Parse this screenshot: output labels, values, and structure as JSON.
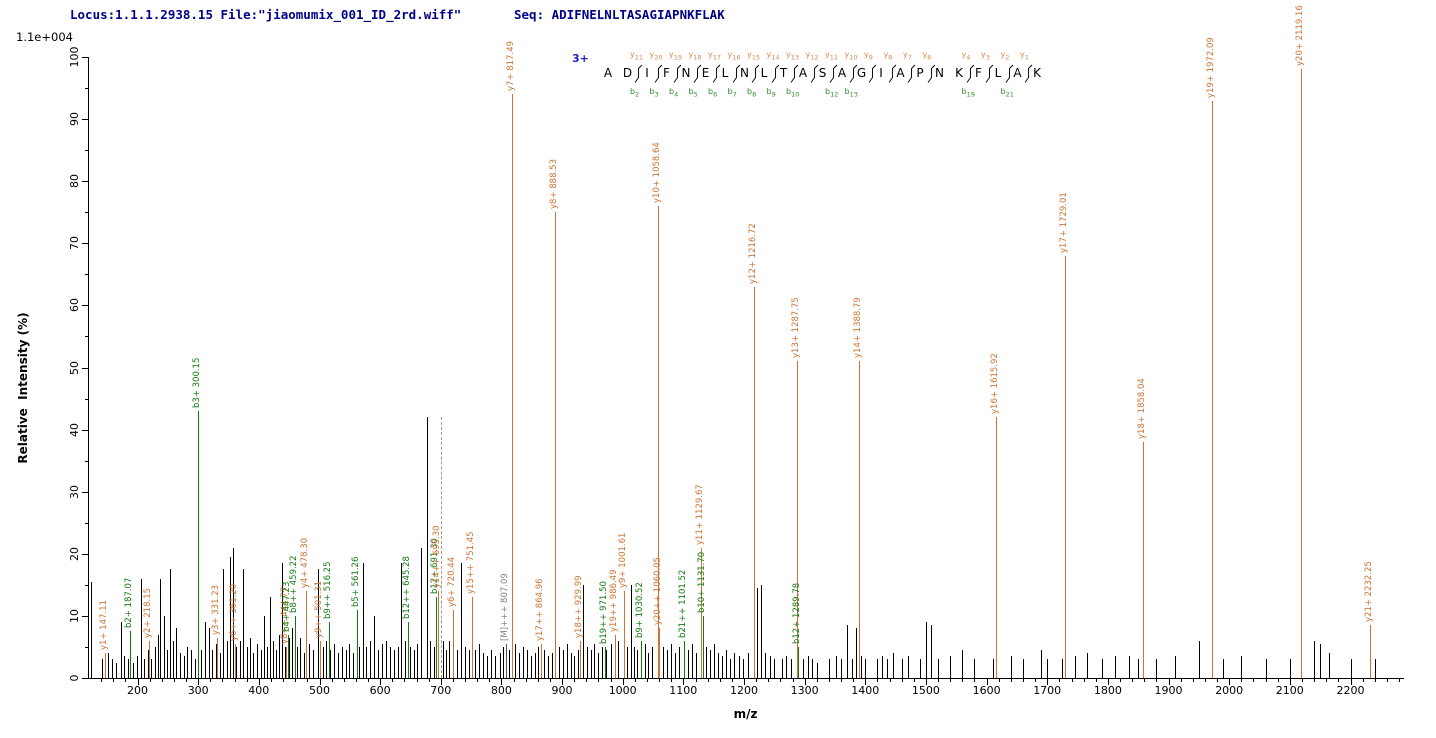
{
  "header": {
    "locus_file": "Locus:1.1.1.2938.15 File:\"jiaomumix_001_ID_2rd.wiff\"",
    "seq_line": "Seq: ADIFNELNLTASAGIAPNKFLAK"
  },
  "colors": {
    "y_ion": "#cf7233",
    "b_ion": "#107a10",
    "precursor_label": "#7f7f7f",
    "precursor_peak": "#555555",
    "noise": "#000000",
    "header_text": "#00008B",
    "charge_text": "#2222cc",
    "y_sub_label": "#dd8852",
    "b_sub_label": "#2f8f2f"
  },
  "chart_data": {
    "type": "bar",
    "title": "Locus:1.1.1.2938.15 File:\"jiaomumix_001_ID_2rd.wiff\" Seq: ADIFNELNLTASAGIAPNKFLAK",
    "xlabel": "m/z",
    "ylabel": "Relative  Intensity (%)",
    "y_scale_note": "1.1e+004",
    "xlim": [
      120,
      2285
    ],
    "ylim": [
      0,
      100
    ],
    "x_major_tick_start": 200,
    "x_major_tick_end": 2200,
    "x_major_step": 100,
    "x_minor_step": 20,
    "y_major_step": 10,
    "y_minor_step": 5,
    "grid": false,
    "legend": "none",
    "precursor_charge": "3+",
    "precursor_line": {
      "mz": 700,
      "intensity": 42,
      "style": "dashed"
    },
    "fragment_map": {
      "residues": [
        "A",
        "D",
        "I",
        "F",
        "N",
        "E",
        "L",
        "N",
        "L",
        "T",
        "A",
        "S",
        "A",
        "G",
        "I",
        "A",
        "P",
        "N",
        "K",
        "F",
        "L",
        "A",
        "K"
      ],
      "cleavages": [
        {
          "after": 2,
          "y": "y21",
          "b": "b2"
        },
        {
          "after": 3,
          "y": "y20",
          "b": "b3"
        },
        {
          "after": 4,
          "y": "y19",
          "b": "b4"
        },
        {
          "after": 5,
          "y": "y18",
          "b": "b5"
        },
        {
          "after": 6,
          "y": "y17",
          "b": "b6"
        },
        {
          "after": 7,
          "y": "y16",
          "b": "b7"
        },
        {
          "after": 8,
          "y": "y15",
          "b": "b8"
        },
        {
          "after": 9,
          "y": "y14",
          "b": "b9"
        },
        {
          "after": 10,
          "y": "y13",
          "b": "b10"
        },
        {
          "after": 11,
          "y": "y12",
          "b": null
        },
        {
          "after": 12,
          "y": "y11",
          "b": "b12"
        },
        {
          "after": 13,
          "y": "y10",
          "b": "b13"
        },
        {
          "after": 14,
          "y": "y9",
          "b": null
        },
        {
          "after": 15,
          "y": "y8",
          "b": null
        },
        {
          "after": 16,
          "y": "y7",
          "b": null
        },
        {
          "after": 17,
          "y": "y6",
          "b": null
        },
        {
          "after": 19,
          "y": "y4",
          "b": "b19"
        },
        {
          "after": 20,
          "y": "y3",
          "b": null
        },
        {
          "after": 21,
          "y": "y2",
          "b": "b21"
        },
        {
          "after": 22,
          "y": "y1",
          "b": null
        }
      ]
    },
    "annotated_peaks": [
      {
        "label": "y1+ 147.11",
        "mz": 147.11,
        "intensity": 4,
        "series": "y"
      },
      {
        "label": "b2+ 187.07",
        "mz": 187.07,
        "intensity": 7.5,
        "series": "b"
      },
      {
        "label": "y2+ 218.15",
        "mz": 218.15,
        "intensity": 6,
        "series": "y"
      },
      {
        "label": "b3+ 300.15",
        "mz": 300.15,
        "intensity": 43,
        "series": "b"
      },
      {
        "label": "y3+ 331.23",
        "mz": 331.23,
        "intensity": 6.5,
        "series": "y"
      },
      {
        "label": "y6++ 361.20",
        "mz": 361.2,
        "intensity": 5.5,
        "series": "y"
      },
      {
        "label": "y8++ 444.77",
        "mz": 444.77,
        "intensity": 5,
        "series": "y"
      },
      {
        "label": "b4+ 447.23",
        "mz": 447.23,
        "intensity": 7,
        "series": "b"
      },
      {
        "label": "b8++ 459.22",
        "mz": 459.22,
        "intensity": 10,
        "series": "b"
      },
      {
        "label": "y4+ 478.30",
        "mz": 478.3,
        "intensity": 14,
        "series": "y"
      },
      {
        "label": "y9++ 501.31",
        "mz": 501.31,
        "intensity": 6,
        "series": "y"
      },
      {
        "label": "b9++ 516.25",
        "mz": 516.25,
        "intensity": 9,
        "series": "b"
      },
      {
        "label": "b5+ 561.26",
        "mz": 561.26,
        "intensity": 11,
        "series": "b"
      },
      {
        "label": "b12++ 645.28",
        "mz": 645.28,
        "intensity": 9,
        "series": "b"
      },
      {
        "label": "b12+ 691.30",
        "mz": 691.3,
        "intensity": 13,
        "series": "b"
      },
      {
        "label": "y14++ 695.30",
        "mz": 695.3,
        "intensity": 14,
        "series": "y"
      },
      {
        "label": "y6+ 720.44",
        "mz": 720.44,
        "intensity": 11,
        "series": "y"
      },
      {
        "label": "y15++ 751.45",
        "mz": 751.45,
        "intensity": 13,
        "series": "y"
      },
      {
        "label": "[M]+++ 807.09",
        "mz": 807.09,
        "intensity": 5.5,
        "series": "M"
      },
      {
        "label": "y7+ 817.49",
        "mz": 817.49,
        "intensity": 94,
        "series": "y"
      },
      {
        "label": "y17++ 864.96",
        "mz": 864.96,
        "intensity": 5.5,
        "series": "y"
      },
      {
        "label": "y8+ 888.53",
        "mz": 888.53,
        "intensity": 75,
        "series": "y"
      },
      {
        "label": "y18++ 929.99",
        "mz": 929.99,
        "intensity": 6,
        "series": "y"
      },
      {
        "label": "b19++ 971.50",
        "mz": 971.5,
        "intensity": 5,
        "series": "b"
      },
      {
        "label": "y19++ 986.49",
        "mz": 986.49,
        "intensity": 7,
        "series": "y"
      },
      {
        "label": "y9+ 1001.61",
        "mz": 1001.61,
        "intensity": 14,
        "series": "y"
      },
      {
        "label": "b9+ 1030.52",
        "mz": 1030.52,
        "intensity": 6,
        "series": "b"
      },
      {
        "label": "y10+ 1058.64",
        "mz": 1058.64,
        "intensity": 76,
        "series": "y"
      },
      {
        "label": "y20++ 1060.05",
        "mz": 1060.05,
        "intensity": 8,
        "series": "y"
      },
      {
        "label": "b21++ 1101.52",
        "mz": 1101.52,
        "intensity": 6,
        "series": "b"
      },
      {
        "label": "y11+ 1129.67",
        "mz": 1129.67,
        "intensity": 21,
        "series": "y"
      },
      {
        "label": "b10+ 1131.70",
        "mz": 1131.7,
        "intensity": 10,
        "series": "b"
      },
      {
        "label": "y12+ 1216.72",
        "mz": 1216.72,
        "intensity": 63,
        "series": "y"
      },
      {
        "label": "y13+ 1287.75",
        "mz": 1287.75,
        "intensity": 51,
        "series": "y"
      },
      {
        "label": "b12+ 1289.78",
        "mz": 1289.78,
        "intensity": 5,
        "series": "b"
      },
      {
        "label": "y14+ 1388.79",
        "mz": 1388.79,
        "intensity": 51,
        "series": "y"
      },
      {
        "label": "y16+ 1615.92",
        "mz": 1615.92,
        "intensity": 42,
        "series": "y"
      },
      {
        "label": "y17+ 1729.01",
        "mz": 1729.01,
        "intensity": 68,
        "series": "y"
      },
      {
        "label": "y18+ 1858.04",
        "mz": 1858.04,
        "intensity": 38,
        "series": "y"
      },
      {
        "label": "y19+ 1972.09",
        "mz": 1972.09,
        "intensity": 93,
        "series": "y"
      },
      {
        "label": "y20+ 2119.16",
        "mz": 2119.16,
        "intensity": 98,
        "series": "y"
      },
      {
        "label": "y21+ 2232.25",
        "mz": 2232.25,
        "intensity": 8.5,
        "series": "y"
      }
    ],
    "noise_peaks": [
      [
        123,
        15.5
      ],
      [
        141,
        3
      ],
      [
        151,
        4
      ],
      [
        158,
        3
      ],
      [
        165,
        2.5
      ],
      [
        172,
        9
      ],
      [
        178,
        3.5
      ],
      [
        184,
        3
      ],
      [
        193,
        2.5
      ],
      [
        199,
        3.5
      ],
      [
        205,
        16
      ],
      [
        211,
        3
      ],
      [
        217,
        4.5
      ],
      [
        222,
        3
      ],
      [
        228,
        5
      ],
      [
        233,
        7
      ],
      [
        237,
        16
      ],
      [
        243,
        10
      ],
      [
        249,
        4.5
      ],
      [
        254,
        17.5
      ],
      [
        259,
        6
      ],
      [
        264,
        8
      ],
      [
        270,
        4
      ],
      [
        276,
        3.5
      ],
      [
        282,
        5
      ],
      [
        288,
        4.5
      ],
      [
        294,
        3
      ],
      [
        305,
        4.5
      ],
      [
        311,
        9
      ],
      [
        317,
        8
      ],
      [
        323,
        4.5
      ],
      [
        329,
        5.5
      ],
      [
        336,
        4
      ],
      [
        341,
        17.5
      ],
      [
        347,
        6
      ],
      [
        352,
        19.5
      ],
      [
        357,
        21
      ],
      [
        363,
        5
      ],
      [
        369,
        6
      ],
      [
        374,
        17.5
      ],
      [
        380,
        5
      ],
      [
        386,
        6.5
      ],
      [
        391,
        4
      ],
      [
        397,
        5.5
      ],
      [
        403,
        4.5
      ],
      [
        409,
        10
      ],
      [
        414,
        5
      ],
      [
        419,
        13
      ],
      [
        424,
        6
      ],
      [
        429,
        4.5
      ],
      [
        434,
        7
      ],
      [
        438,
        18.5
      ],
      [
        443,
        5
      ],
      [
        450,
        6.5
      ],
      [
        455,
        8
      ],
      [
        463,
        5
      ],
      [
        468,
        6.5
      ],
      [
        474,
        4
      ],
      [
        483,
        5.5
      ],
      [
        490,
        4.5
      ],
      [
        497,
        17.5
      ],
      [
        505,
        5
      ],
      [
        511,
        6
      ],
      [
        517,
        4.5
      ],
      [
        524,
        5.5
      ],
      [
        530,
        4
      ],
      [
        537,
        5
      ],
      [
        543,
        4.5
      ],
      [
        549,
        5.5
      ],
      [
        556,
        4
      ],
      [
        565,
        5
      ],
      [
        571,
        18.5
      ],
      [
        577,
        5
      ],
      [
        584,
        6
      ],
      [
        590,
        10
      ],
      [
        597,
        4.5
      ],
      [
        603,
        5.5
      ],
      [
        610,
        6
      ],
      [
        617,
        5
      ],
      [
        623,
        4.5
      ],
      [
        630,
        5
      ],
      [
        635,
        18.5
      ],
      [
        641,
        6
      ],
      [
        650,
        5
      ],
      [
        656,
        4.5
      ],
      [
        661,
        5.5
      ],
      [
        668,
        21
      ],
      [
        677,
        42
      ],
      [
        683,
        6
      ],
      [
        688,
        5
      ],
      [
        703,
        6
      ],
      [
        709,
        4.5
      ],
      [
        714,
        6
      ],
      [
        726,
        4.5
      ],
      [
        734,
        18.5
      ],
      [
        740,
        5
      ],
      [
        746,
        4.5
      ],
      [
        757,
        4.5
      ],
      [
        763,
        5.5
      ],
      [
        770,
        4
      ],
      [
        776,
        3.5
      ],
      [
        783,
        4.5
      ],
      [
        790,
        3.5
      ],
      [
        797,
        4
      ],
      [
        803,
        5
      ],
      [
        812,
        4.5
      ],
      [
        823,
        5.5
      ],
      [
        829,
        4
      ],
      [
        836,
        5
      ],
      [
        842,
        4.5
      ],
      [
        848,
        3.5
      ],
      [
        855,
        4
      ],
      [
        861,
        5
      ],
      [
        870,
        4.5
      ],
      [
        877,
        3.5
      ],
      [
        884,
        4
      ],
      [
        895,
        5
      ],
      [
        901,
        4.5
      ],
      [
        908,
        5.5
      ],
      [
        914,
        4
      ],
      [
        920,
        3.5
      ],
      [
        926,
        4.5
      ],
      [
        935,
        15
      ],
      [
        941,
        5
      ],
      [
        947,
        4.5
      ],
      [
        953,
        5.5
      ],
      [
        960,
        4
      ],
      [
        966,
        5
      ],
      [
        973,
        4.5
      ],
      [
        980,
        5.5
      ],
      [
        992,
        6
      ],
      [
        1007,
        5
      ],
      [
        1013,
        15
      ],
      [
        1019,
        5
      ],
      [
        1024,
        4.5
      ],
      [
        1036,
        5.5
      ],
      [
        1042,
        4
      ],
      [
        1048,
        5
      ],
      [
        1067,
        5
      ],
      [
        1073,
        4.5
      ],
      [
        1080,
        5.5
      ],
      [
        1086,
        4
      ],
      [
        1093,
        5
      ],
      [
        1108,
        4.5
      ],
      [
        1115,
        5.5
      ],
      [
        1121,
        4
      ],
      [
        1137,
        5
      ],
      [
        1144,
        4.5
      ],
      [
        1150,
        5.5
      ],
      [
        1157,
        4
      ],
      [
        1163,
        3.5
      ],
      [
        1170,
        4.5
      ],
      [
        1177,
        3
      ],
      [
        1184,
        4
      ],
      [
        1191,
        3.5
      ],
      [
        1199,
        3
      ],
      [
        1207,
        4
      ],
      [
        1222,
        14.5
      ],
      [
        1228,
        15
      ],
      [
        1235,
        4
      ],
      [
        1242,
        3.5
      ],
      [
        1250,
        3
      ],
      [
        1262,
        3
      ],
      [
        1270,
        3.5
      ],
      [
        1278,
        3
      ],
      [
        1297,
        3
      ],
      [
        1305,
        3.5
      ],
      [
        1312,
        3
      ],
      [
        1320,
        2.5
      ],
      [
        1340,
        3
      ],
      [
        1352,
        3.5
      ],
      [
        1360,
        3
      ],
      [
        1370,
        8.5
      ],
      [
        1378,
        3
      ],
      [
        1385,
        8
      ],
      [
        1393,
        3.5
      ],
      [
        1400,
        3
      ],
      [
        1420,
        3
      ],
      [
        1428,
        3.5
      ],
      [
        1436,
        3
      ],
      [
        1445,
        4
      ],
      [
        1460,
        3
      ],
      [
        1470,
        3.5
      ],
      [
        1490,
        3
      ],
      [
        1500,
        9
      ],
      [
        1508,
        8.5
      ],
      [
        1520,
        3
      ],
      [
        1540,
        3.5
      ],
      [
        1560,
        4.5
      ],
      [
        1580,
        3
      ],
      [
        1610,
        3
      ],
      [
        1640,
        3.5
      ],
      [
        1660,
        3
      ],
      [
        1690,
        4.5
      ],
      [
        1700,
        3
      ],
      [
        1725,
        3
      ],
      [
        1745,
        3.5
      ],
      [
        1765,
        4
      ],
      [
        1790,
        3
      ],
      [
        1812,
        3.5
      ],
      [
        1835,
        3.5
      ],
      [
        1850,
        3
      ],
      [
        1880,
        3
      ],
      [
        1910,
        3.5
      ],
      [
        1950,
        6
      ],
      [
        1990,
        3
      ],
      [
        2020,
        3.5
      ],
      [
        2060,
        3
      ],
      [
        2100,
        3
      ],
      [
        2140,
        6
      ],
      [
        2150,
        5.5
      ],
      [
        2165,
        4
      ],
      [
        2200,
        3
      ],
      [
        2240,
        3
      ]
    ]
  }
}
